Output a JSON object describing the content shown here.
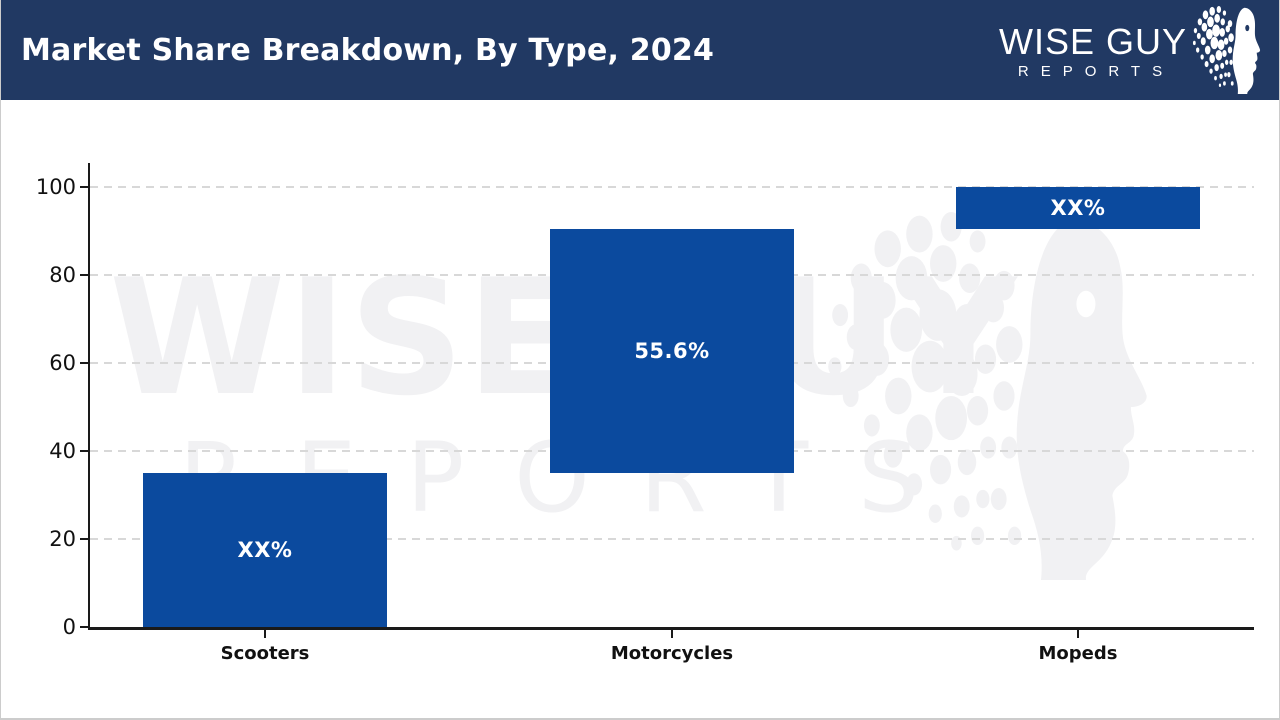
{
  "header": {
    "title": "Market Share Breakdown, By Type, 2024",
    "bg_color": "#213963",
    "logo": {
      "line1": "WISE GUY",
      "line2": "REPORTS"
    }
  },
  "watermark": {
    "line1": "WISE GUY",
    "line2": "REPORTS"
  },
  "chart_data": {
    "type": "bar",
    "subtype": "floating-waterfall",
    "title": "Market Share Breakdown, By Type, 2024",
    "xlabel": "",
    "ylabel": "",
    "categories": [
      "Scooters",
      "Motorcycles",
      "Mopeds"
    ],
    "bars": [
      {
        "category": "Scooters",
        "start": 0,
        "end": 35,
        "label": "XX%"
      },
      {
        "category": "Motorcycles",
        "start": 35,
        "end": 90.6,
        "label": "55.6%"
      },
      {
        "category": "Mopeds",
        "start": 90.6,
        "end": 100,
        "label": "XX%"
      }
    ],
    "yticks": [
      0,
      20,
      40,
      60,
      80,
      100
    ],
    "ylim": [
      0,
      105.5
    ],
    "grid": "horizontal-dashed",
    "legend": "none",
    "bar_color": "#0B4A9E",
    "bar_label_color": "#FFFFFF",
    "axis_color": "#1a1a1a",
    "gridline_color": "#d8d8d8"
  }
}
